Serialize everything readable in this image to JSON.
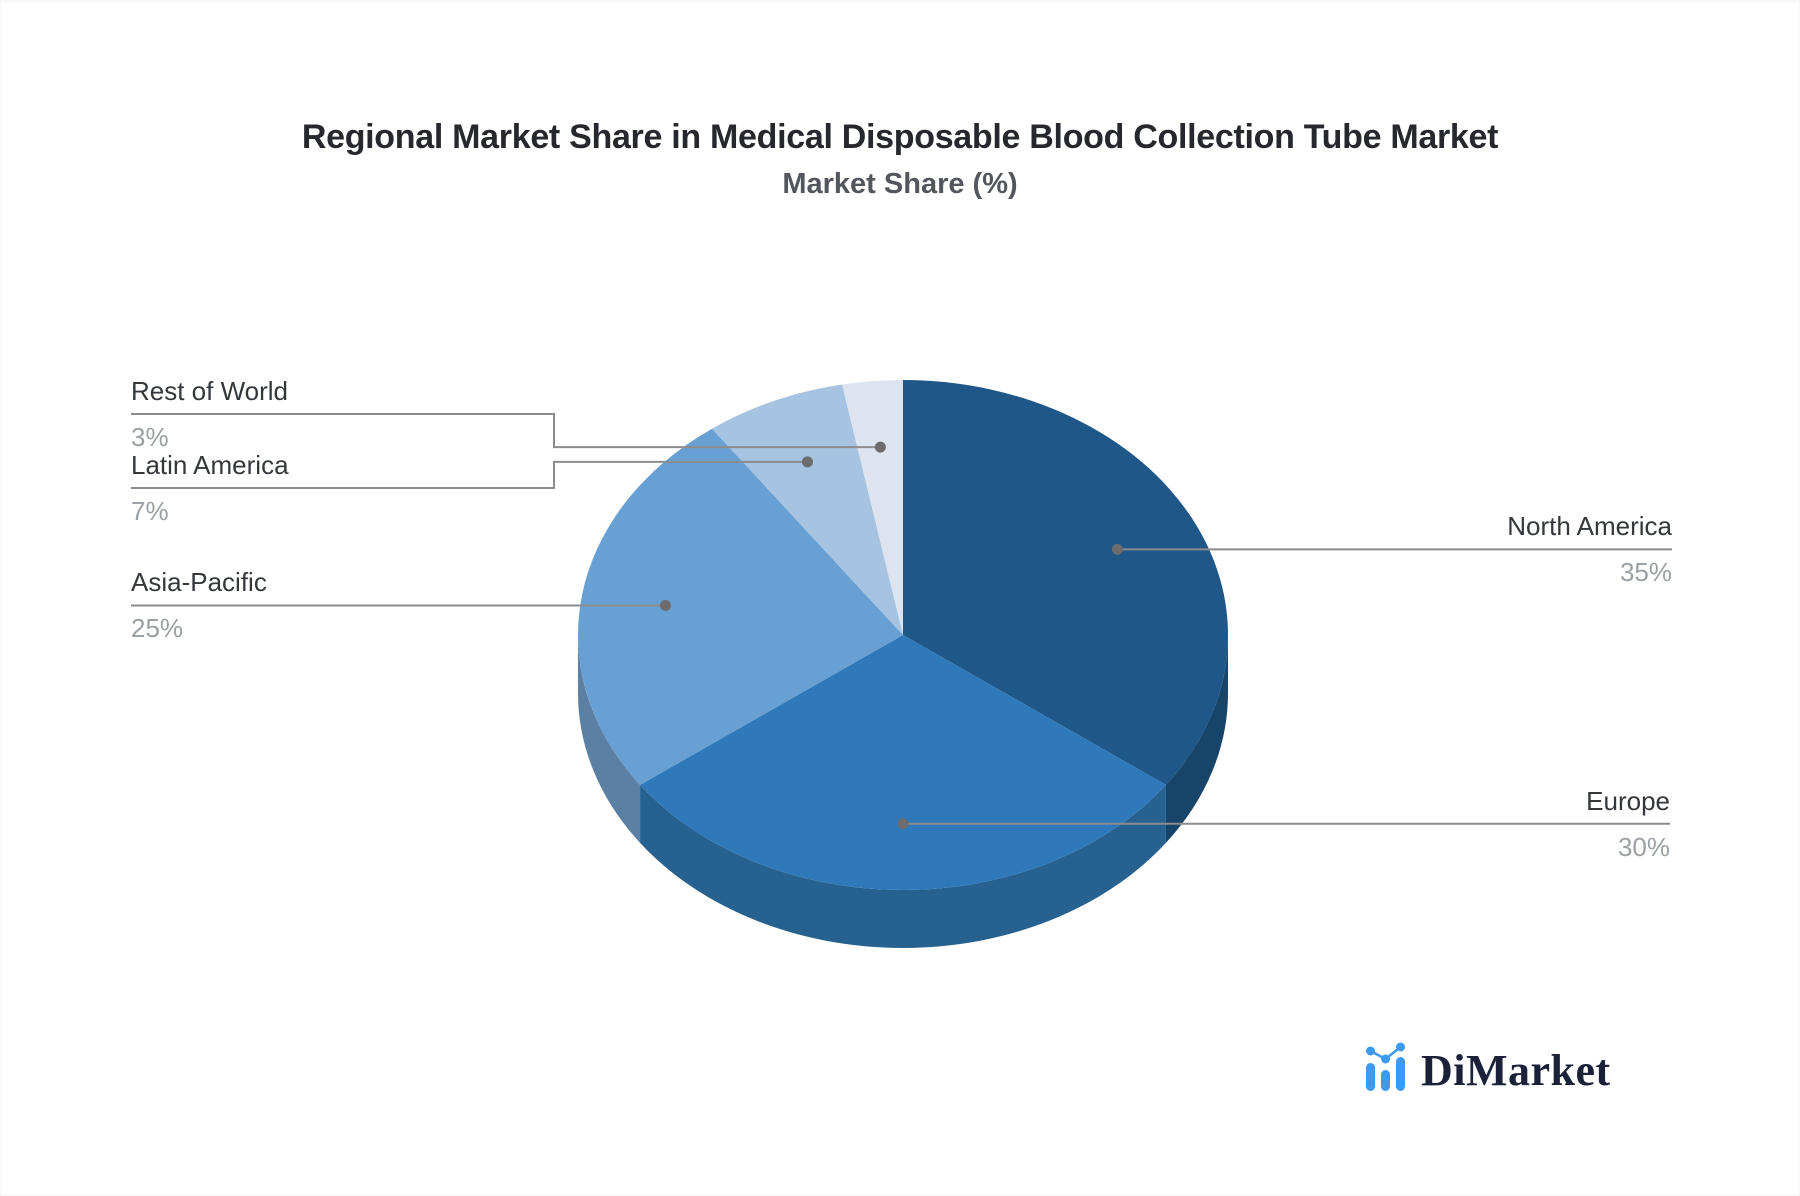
{
  "title": "Regional Market Share in Medical Disposable Blood Collection Tube Market",
  "subtitle": "Market Share (%)",
  "chart_data": {
    "type": "pie",
    "style": "3d",
    "title": "Regional Market Share in Medical Disposable Blood Collection Tube Market",
    "subtitle": "Market Share (%)",
    "unit": "%",
    "start_angle_deg": 0,
    "direction": "clockwise",
    "legend_position": "callouts",
    "slices": [
      {
        "label": "North America",
        "value": 35,
        "display": "35%",
        "color": "#1e5788",
        "side_color": "#174469"
      },
      {
        "label": "Europe",
        "value": 30,
        "display": "30%",
        "color": "#2f79ba",
        "side_color": "#266190"
      },
      {
        "label": "Asia-Pacific",
        "value": 25,
        "display": "25%",
        "color": "#69a0d3",
        "side_color": "#5b80a3"
      },
      {
        "label": "Latin America",
        "value": 7,
        "display": "7%",
        "color": "#a6c3e1",
        "side_color": "#8aa6c4"
      },
      {
        "label": "Rest of World",
        "value": 3,
        "display": "3%",
        "color": "#dde4ef",
        "side_color": "#b9c3d2"
      }
    ]
  },
  "branding": {
    "logo_text": "DiMarket",
    "logo_icon": "bar-line-chart-icon"
  },
  "colors": {
    "background": "#ffffff",
    "title_text": "#26282e",
    "subtitle_text": "#53565d",
    "callout_label_text": "#34373b",
    "callout_value_text": "#9aa0a5",
    "leader_line": "#8c8c8c",
    "leader_dot": "#6c6c6c",
    "logo_text": "#1a2138",
    "logo_icon_blue": "#3d9af0"
  }
}
